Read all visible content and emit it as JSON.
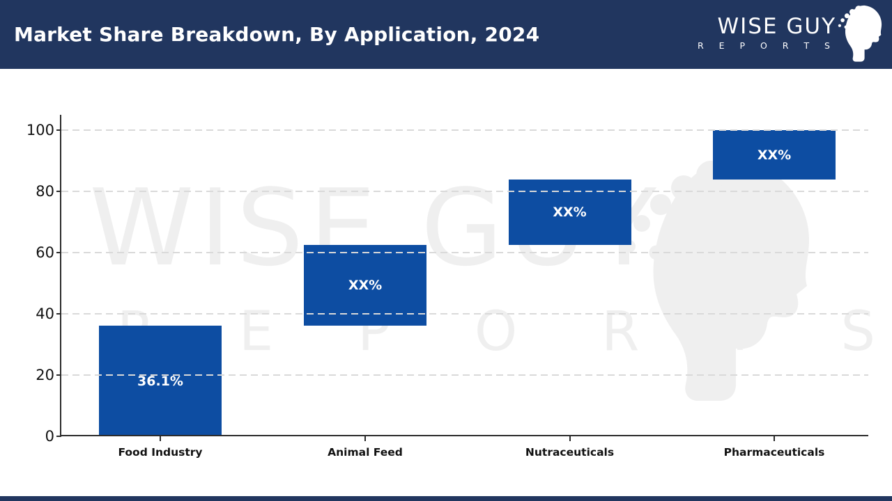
{
  "header": {
    "title": "Market Share Breakdown, By Application, 2024",
    "logo": {
      "name": "WISE GUY",
      "tagline": "R E P O R T S"
    }
  },
  "watermark": {
    "line1": "WISE GUY",
    "line2": "R E P O R T S"
  },
  "chart_data": {
    "type": "bar",
    "subtype": "waterfall-floating-segments",
    "title": "Market Share Breakdown, By Application, 2024",
    "categories": [
      "Food Industry",
      "Animal Feed",
      "Nutraceuticals",
      "Pharmaceuticals"
    ],
    "bars": [
      {
        "category": "Food Industry",
        "start": 0,
        "end": 36.1,
        "label": "36.1%"
      },
      {
        "category": "Animal Feed",
        "start": 36.1,
        "end": 62.4,
        "label": "XX%"
      },
      {
        "category": "Nutraceuticals",
        "start": 62.4,
        "end": 83.7,
        "label": "XX%"
      },
      {
        "category": "Pharmaceuticals",
        "start": 83.7,
        "end": 100,
        "label": "XX%"
      }
    ],
    "xlabel": "",
    "ylabel": "",
    "ylim": [
      0,
      100
    ],
    "yticks": [
      0,
      20,
      40,
      60,
      80,
      100
    ],
    "grid": "horizontal-dashed-drawn-over-bars",
    "legend": "none",
    "bar_color": "#0D4DA2",
    "bar_label_color": "#FFFFFF"
  },
  "colors": {
    "header_bg": "#21365F",
    "footer_bg": "#21365F",
    "bar": "#0D4DA2",
    "gridline": "#D9D9D9",
    "axis": "#2B2B2B",
    "watermark": "#EFEFEF",
    "title_text": "#FFFFFF"
  }
}
